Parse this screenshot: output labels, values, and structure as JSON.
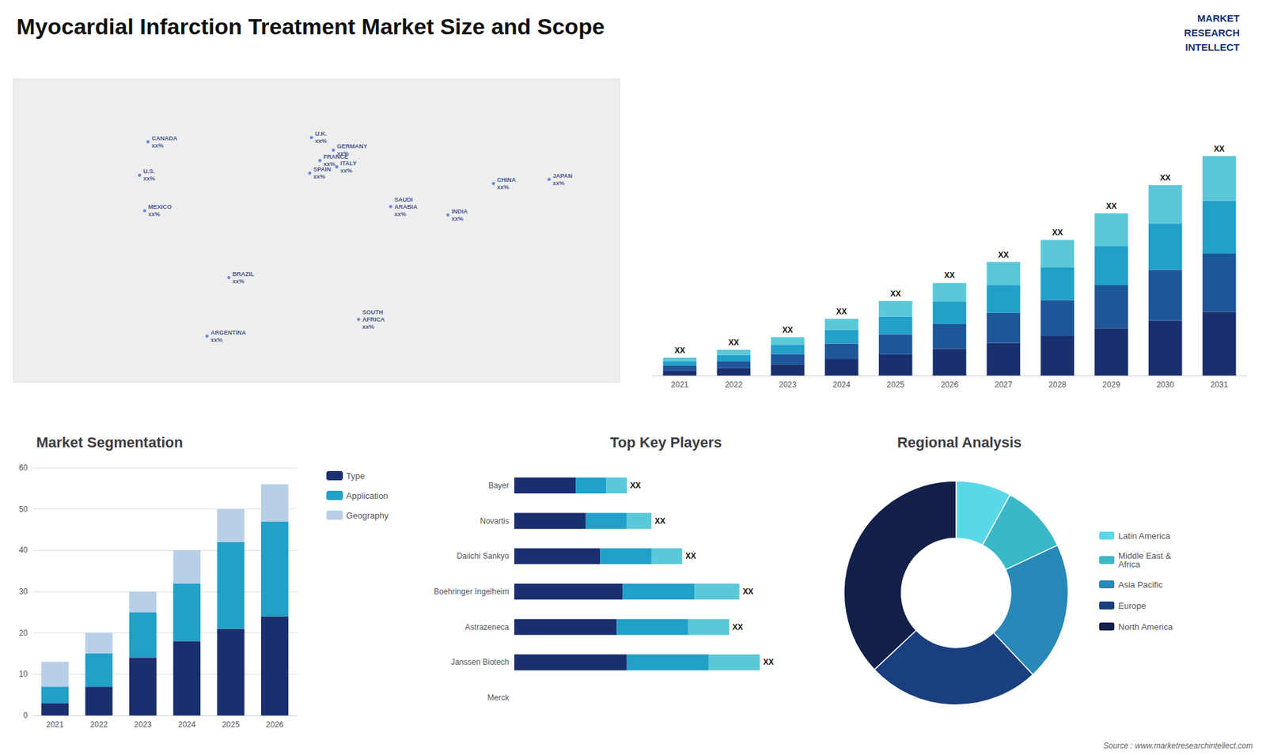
{
  "title": "Myocardial Infarction Treatment Market Size and Scope",
  "annotations": [
    "MARKET",
    "RESEARCH",
    "INTELLECT",
    "Source : www.marketresearchintellect.com"
  ],
  "chart_data": [
    {
      "type": "map",
      "xlim": [
        -180,
        180
      ],
      "ylim": [
        -60,
        85
      ],
      "tick_labels": false,
      "grid": false,
      "annotations": [
        {
          "text": "CANADA\nxx%",
          "x": -100,
          "y": 55
        },
        {
          "text": "U.S.\nxx%",
          "x": -105,
          "y": 39
        },
        {
          "text": "MEXICO\nxx%",
          "x": -102,
          "y": 22
        },
        {
          "text": "BRAZIL\nxx%",
          "x": -52,
          "y": -10
        },
        {
          "text": "ARGENTINA\nxx%",
          "x": -65,
          "y": -38
        },
        {
          "text": "U.K.\nxx%",
          "x": -3,
          "y": 57
        },
        {
          "text": "FRANCE\nxx%",
          "x": 2,
          "y": 46
        },
        {
          "text": "SPAIN\nxx%",
          "x": -4,
          "y": 40
        },
        {
          "text": "GERMANY\nxx%",
          "x": 10,
          "y": 51
        },
        {
          "text": "ITALY\nxx%",
          "x": 12,
          "y": 43
        },
        {
          "text": "SAUDI\nARABIA\nxx%",
          "x": 44,
          "y": 24
        },
        {
          "text": "SOUTH\nAFRICA\nxx%",
          "x": 25,
          "y": -30
        },
        {
          "text": "CHINA\nxx%",
          "x": 105,
          "y": 35
        },
        {
          "text": "INDIA\nxx%",
          "x": 78,
          "y": 20
        },
        {
          "text": "JAPAN\nxx%",
          "x": 138,
          "y": 37
        }
      ]
    },
    {
      "type": "bar",
      "stacked": true,
      "categories": [
        2021,
        2022,
        2023,
        2024,
        2025,
        2026,
        2027,
        2028,
        2029,
        2030,
        2031
      ],
      "series": [
        {
          "color": "#1a2f6e",
          "values": [
            1.5,
            2.2,
            3.2,
            4.8,
            6.2,
            7.8,
            9.5,
            11.5,
            13.8,
            16.0,
            18.5
          ]
        },
        {
          "color": "#1e5799",
          "values": [
            1.5,
            2.0,
            3.0,
            4.5,
            5.8,
            7.2,
            8.8,
            10.5,
            12.5,
            14.8,
            17.0
          ]
        },
        {
          "color": "#21a0c8",
          "values": [
            1.2,
            1.8,
            2.8,
            4.0,
            5.2,
            6.5,
            8.0,
            9.5,
            11.5,
            13.5,
            15.5
          ]
        },
        {
          "color": "#5bc8d8",
          "values": [
            1.0,
            1.5,
            2.2,
            3.2,
            4.5,
            5.5,
            6.8,
            8.0,
            9.5,
            11.2,
            13.0
          ]
        }
      ],
      "ylim": [
        0,
        84.48
      ],
      "tick_labels": "x",
      "grid": false,
      "annotations": [
        "XX",
        "XX",
        "XX",
        "XX",
        "XX",
        "XX",
        "XX",
        "XX",
        "XX",
        "XX",
        "XX"
      ]
    },
    {
      "type": "bar",
      "title": "Market Segmentation",
      "stacked": true,
      "categories": [
        "2021",
        "2022",
        "2023",
        "2024",
        "2025",
        "2026"
      ],
      "series": [
        {
          "name": "Type",
          "color": "#1a2f6e",
          "values": [
            3,
            7,
            14,
            18,
            21,
            24
          ]
        },
        {
          "name": "Application",
          "color": "#21a0c8",
          "values": [
            4,
            8,
            11,
            14,
            21,
            23
          ]
        },
        {
          "name": "Geography",
          "color": "#b8cfe8",
          "values": [
            6,
            5,
            5,
            8,
            8,
            9
          ]
        }
      ],
      "ylim": [
        0,
        60
      ],
      "yticks": [
        0,
        10,
        20,
        30,
        40,
        50,
        60
      ],
      "grid": true,
      "legend": "right"
    },
    {
      "type": "bar",
      "title": "Top Key Players",
      "orientation": "horizontal",
      "stacked": true,
      "categories": [
        "Merck",
        "Janssen Biotech",
        "Astrazeneca",
        "Boehringer Ingelheim",
        "Daiichi Sankyo",
        "Novartis",
        "Bayer"
      ],
      "series": [
        {
          "color": "#1a2f6e",
          "values": [
            0,
            5.5,
            5.0,
            5.3,
            4.2,
            3.5,
            3.0
          ]
        },
        {
          "color": "#21a0c8",
          "values": [
            0,
            4.0,
            3.5,
            3.5,
            2.5,
            2.0,
            1.5
          ]
        },
        {
          "color": "#5bc8d8",
          "values": [
            0,
            2.5,
            2.0,
            2.2,
            1.5,
            1.2,
            1.0
          ]
        }
      ],
      "xlim": [
        0,
        14.5
      ],
      "tick_labels": "y",
      "grid": false,
      "annotations": [
        null,
        "XX",
        "XX",
        "XX",
        "XX",
        "XX",
        "XX"
      ]
    },
    {
      "type": "pie",
      "title": "Regional Analysis",
      "categories": [
        "Latin America",
        "Middle East &\nAfrica",
        "Asia Pacific",
        "Europe",
        "North America"
      ],
      "values": [
        8,
        10,
        20,
        25,
        37
      ],
      "colors": [
        "#5bd8e8",
        "#3ab8c8",
        "#2888b8",
        "#1a3f7e",
        "#12204a"
      ],
      "legend": "right"
    }
  ]
}
